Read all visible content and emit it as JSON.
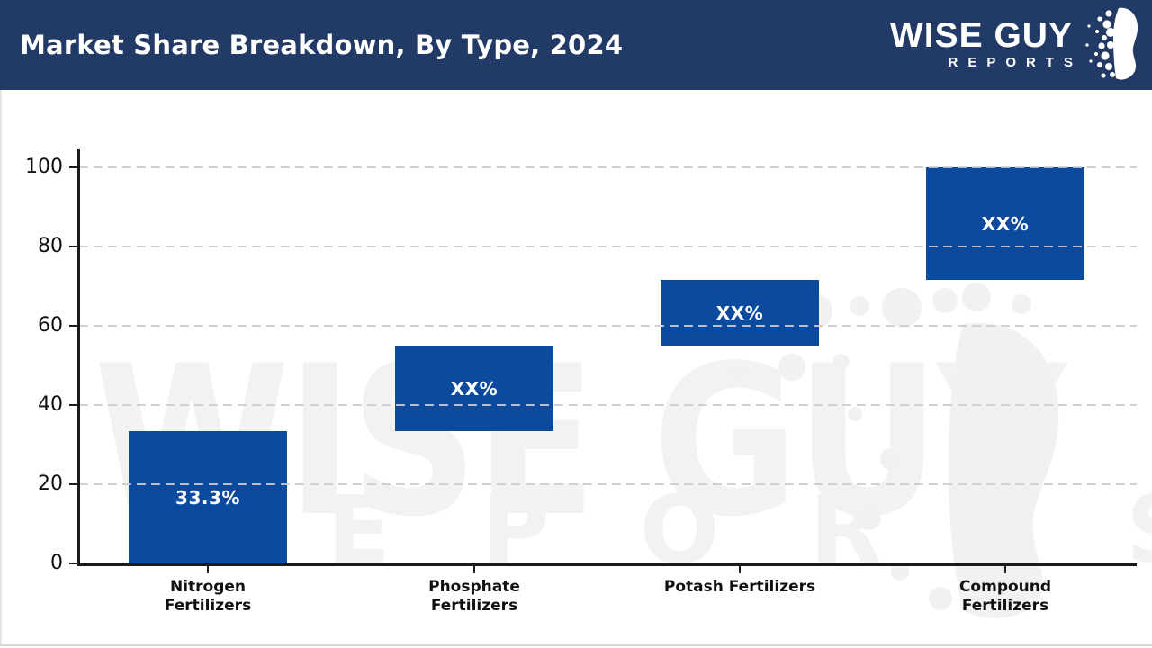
{
  "header": {
    "title": "Market Share Breakdown, By Type, 2024",
    "logo": {
      "line1": "WISE GUY",
      "line2": "REPORTS",
      "icon": "dotted-head-profile"
    }
  },
  "watermark": {
    "line1": "WISE GUY",
    "line2": "R E P O R T S"
  },
  "colors": {
    "header_bg": "#213A66",
    "bar_fill": "#0C4A9E",
    "bar_label": "#FFFFFF",
    "grid": "#CCCCCC",
    "axis": "#1A1A1A",
    "tick_text": "#111111",
    "watermark": "#F2F2F2",
    "background": "#FFFFFF"
  },
  "chart_data": {
    "type": "bar",
    "subtype": "waterfall-floating-bars",
    "title": "Market Share Breakdown, By Type, 2024",
    "xlabel": "",
    "ylabel": "",
    "ylim": [
      0,
      100
    ],
    "yticks": [
      0,
      20,
      40,
      60,
      80,
      100
    ],
    "grid": "dashed-horizontal",
    "legend": "none",
    "categories": [
      "Nitrogen Fertilizers",
      "Phosphate Fertilizers",
      "Potash Fertilizers",
      "Compound Fertilizers"
    ],
    "bars": [
      {
        "category": "Nitrogen Fertilizers",
        "category_lines": [
          "Nitrogen",
          "Fertilizers"
        ],
        "start": 0,
        "end": 33.3,
        "value": 33.3,
        "label": "33.3%"
      },
      {
        "category": "Phosphate Fertilizers",
        "category_lines": [
          "Phosphate",
          "Fertilizers"
        ],
        "start": 33.3,
        "end": 55,
        "value": 21.7,
        "label": "XX%"
      },
      {
        "category": "Potash Fertilizers",
        "category_lines": [
          "Potash Fertilizers"
        ],
        "start": 55,
        "end": 71.5,
        "value": 16.5,
        "label": "XX%"
      },
      {
        "category": "Compound Fertilizers",
        "category_lines": [
          "Compound",
          "Fertilizers"
        ],
        "start": 71.5,
        "end": 100,
        "value": 28.5,
        "label": "XX%"
      }
    ]
  }
}
